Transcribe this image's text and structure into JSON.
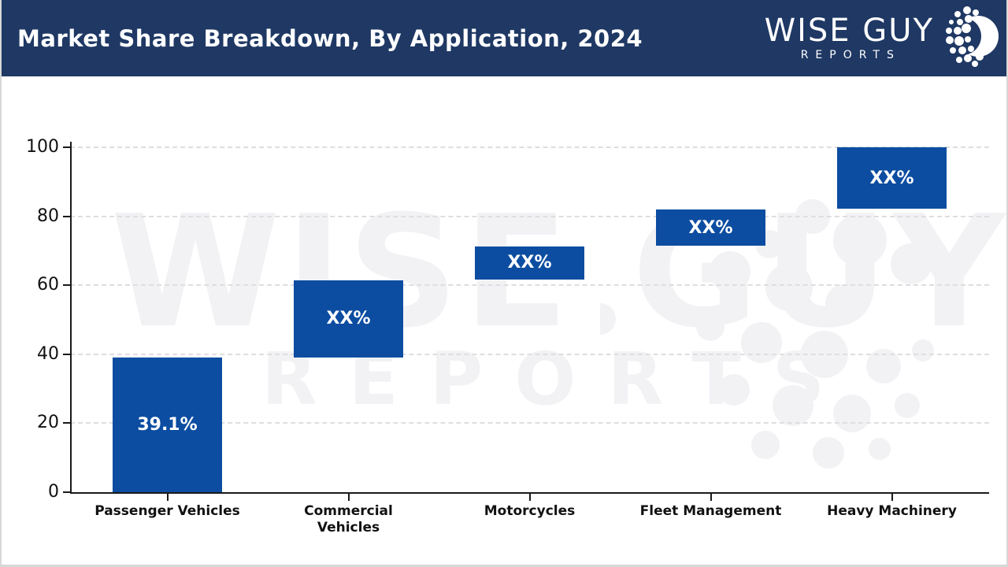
{
  "header": {
    "title": "Market Share Breakdown, By Application, 2024",
    "bg_color": "#1F3864",
    "logo": {
      "line1": "WISE GUY",
      "line2": "REPORTS"
    }
  },
  "watermark": {
    "line1": "WISE GUY",
    "line2": "REPORTS"
  },
  "chart_data": {
    "type": "bar",
    "subtype": "waterfall",
    "title": "Market Share Breakdown, By Application, 2024",
    "categories": [
      "Passenger Vehicles",
      "Commercial Vehicles",
      "Motorcycles",
      "Fleet Management",
      "Heavy Machinery"
    ],
    "category_display_lines": [
      "Passenger Vehicles",
      "Commercial\nVehicles",
      "Motorcycles",
      "Fleet Management",
      "Heavy Machinery"
    ],
    "segments": [
      {
        "category": "Passenger Vehicles",
        "start": 0,
        "end": 39.1,
        "label": "39.1%"
      },
      {
        "category": "Commercial Vehicles",
        "start": 39.1,
        "end": 61.5,
        "label": "XX%"
      },
      {
        "category": "Motorcycles",
        "start": 61.6,
        "end": 71.3,
        "label": "XX%"
      },
      {
        "category": "Fleet Management",
        "start": 71.4,
        "end": 82.0,
        "label": "XX%"
      },
      {
        "category": "Heavy Machinery",
        "start": 82.1,
        "end": 100,
        "label": "XX%"
      }
    ],
    "yticks": [
      0,
      20,
      40,
      60,
      80,
      100
    ],
    "ylim": [
      0,
      105
    ],
    "xlabel": "",
    "ylabel": "",
    "grid": "horizontal-dashed",
    "legend": "none",
    "bar_color": "#0C4DA1",
    "bar_label_color": "#ffffff",
    "axis_color": "#1a1a1a"
  }
}
